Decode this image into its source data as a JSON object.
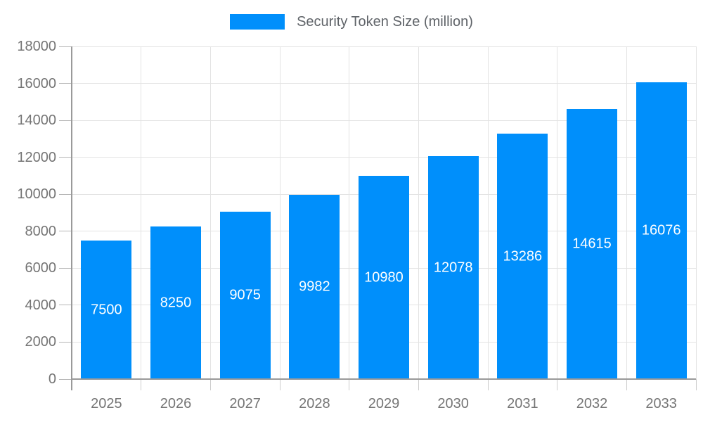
{
  "legend": {
    "label": "Security Token Size (million)"
  },
  "colors": {
    "bar": "#008ffb",
    "grid": "#e3e3e3",
    "axis_line": "#9a9a9a",
    "y_tick": "#b5b5b5",
    "x_tick": "#cccccc",
    "axis_text": "#757575",
    "legend_text": "#5f6368",
    "value_text": "#ffffff",
    "background": "#ffffff"
  },
  "chart_data": {
    "type": "bar",
    "title": "Security Token Size (million)",
    "categories": [
      "2025",
      "2026",
      "2027",
      "2028",
      "2029",
      "2030",
      "2031",
      "2032",
      "2033"
    ],
    "values": [
      7500,
      8250,
      9075,
      9982,
      10980,
      12078,
      13286,
      14615,
      16076
    ],
    "series": [
      {
        "name": "Security Token Size (million)",
        "values": [
          7500,
          8250,
          9075,
          9982,
          10980,
          12078,
          13286,
          14615,
          16076
        ]
      }
    ],
    "xlabel": "",
    "ylabel": "",
    "ylim": [
      0,
      18000
    ],
    "ytick_step": 2000,
    "yticks": [
      0,
      2000,
      4000,
      6000,
      8000,
      10000,
      12000,
      14000,
      16000,
      18000
    ],
    "grid": true,
    "legend_position": "top",
    "value_label_position": "inside-center"
  }
}
